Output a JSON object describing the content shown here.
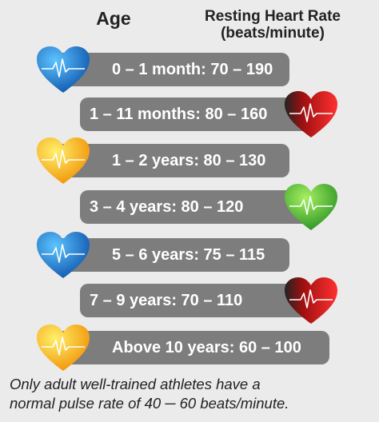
{
  "header": {
    "age": "Age",
    "rate_line1": "Resting Heart Rate",
    "rate_line2": "(beats/minute)"
  },
  "rows": [
    {
      "label": "0 – 1 month: 70 – 190",
      "heart_color": "blue"
    },
    {
      "label": "1 – 11 months: 80 – 160",
      "heart_color": "red"
    },
    {
      "label": "1 – 2 years: 80 – 130",
      "heart_color": "yellow"
    },
    {
      "label": "3 – 4 years: 80 – 120",
      "heart_color": "green"
    },
    {
      "label": "5 – 6 years: 75 – 115",
      "heart_color": "blue"
    },
    {
      "label": "7 – 9 years: 70 – 110",
      "heart_color": "red"
    },
    {
      "label": "Above 10 years: 60 – 100",
      "heart_color": "yellow"
    }
  ],
  "footnote": {
    "line1": "Only adult well-trained athletes have a",
    "line2": "normal pulse rate of 40 ─ 60 beats/minute."
  },
  "colors": {
    "pill": "#7d7d7d",
    "blue": "#1e7fd6",
    "red": "#e02020",
    "yellow": "#f6b800",
    "green": "#4cb832"
  }
}
